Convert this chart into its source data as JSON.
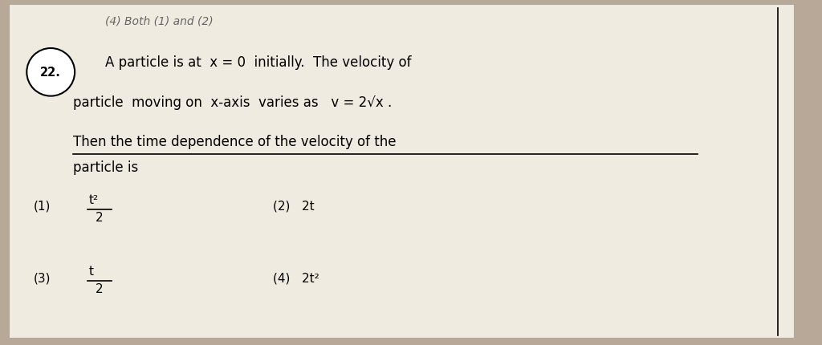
{
  "bg_color": "#b8a898",
  "paper_color": "#f0ebe0",
  "figsize": [
    10.24,
    4.31
  ],
  "dpi": 100,
  "top_text": "(4) Both (1) and (2)",
  "q_num": "22.",
  "line1": "A particle is at  x = 0  initially.  The velocity of",
  "line2": "particle  moving on  x-axis  varies as   v = 2√x .",
  "line3": "Then the time dependence of the velocity of the",
  "line4": "particle is",
  "opt1_label": "(1)",
  "opt1_num": "t²",
  "opt1_den": "2",
  "opt2_label": "(2)",
  "opt2_text": "2t",
  "opt3_label": "(3)",
  "opt3_num": "t",
  "opt3_den": "2",
  "opt4_label": "(4)",
  "opt4_text": "2t²"
}
